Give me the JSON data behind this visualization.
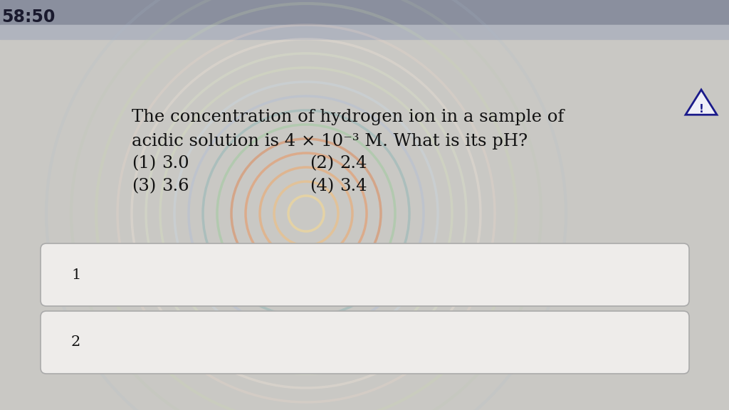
{
  "time_text": "58:50",
  "question_line1": "The concentration of hydrogen ion in a sample of",
  "question_line2": "acidic solution is 4 × 10⁻³ M. What is its pH?",
  "option1_label": "(1)",
  "option1_val": "3.0",
  "option2_label": "(2)",
  "option2_val": "2.4",
  "option3_label": "(3)",
  "option3_val": "3.6",
  "option4_label": "(4)",
  "option4_val": "3.4",
  "answer_box1": "1",
  "answer_box2": "2",
  "top_bar_color": "#8a8f9e",
  "top_bar_color2": "#b0b4be",
  "stripe_color": "#9ea4b2",
  "content_bg": "#c8c7c3",
  "box_facecolor": "#eeecea",
  "box_edgecolor": "#aaaaaa",
  "text_color": "#111111",
  "time_color": "#1a1a2e",
  "triangle_fill": "#f0f0f0",
  "triangle_edge": "#1a1a8a",
  "triangle_inner": "#1a1a8a"
}
